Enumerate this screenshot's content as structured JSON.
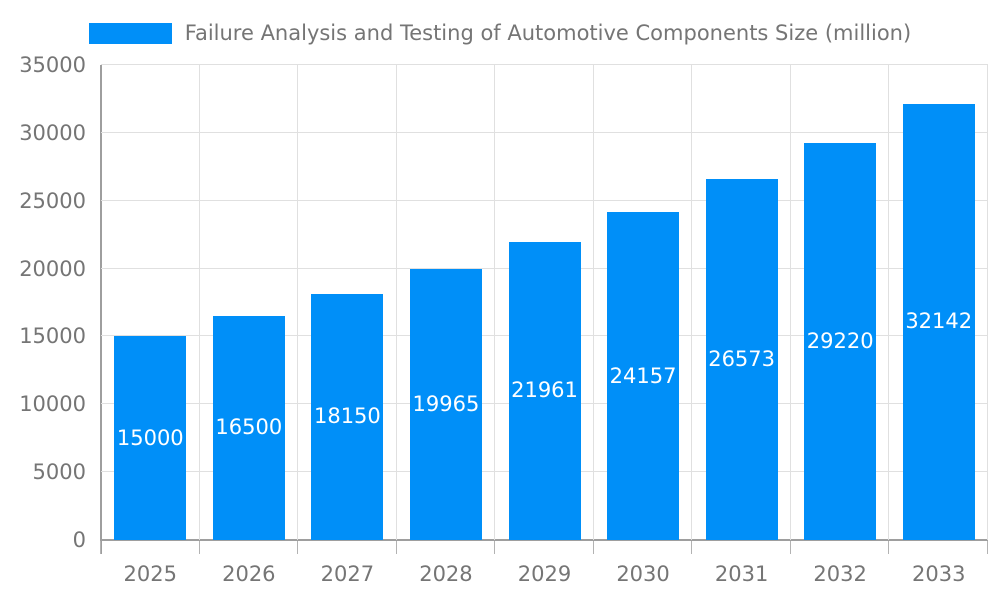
{
  "chart_data": {
    "type": "bar",
    "title": "Failure Analysis and Testing of Automotive Components Size (million)",
    "categories": [
      "2025",
      "2026",
      "2027",
      "2028",
      "2029",
      "2030",
      "2031",
      "2032",
      "2033"
    ],
    "values": [
      15000,
      16500,
      18150,
      19965,
      21961,
      24157,
      26573,
      29220,
      32142
    ],
    "xlabel": "",
    "ylabel": "",
    "ylim": [
      0,
      35000
    ],
    "yticks": [
      0,
      5000,
      10000,
      15000,
      20000,
      25000,
      30000,
      35000
    ],
    "grid": true,
    "legend_position": "top",
    "legend_label": "Failure Analysis and Testing of Automotive Components Size (million)",
    "colors": {
      "bar": "#008FF8",
      "data_label": "#ffffff",
      "axis_text": "#757575",
      "gridline": "#e0e0e0",
      "axis_line": "#9e9e9e",
      "tick_mark": "#b3b3b3",
      "background": "#ffffff"
    },
    "data_label_position": "center"
  }
}
